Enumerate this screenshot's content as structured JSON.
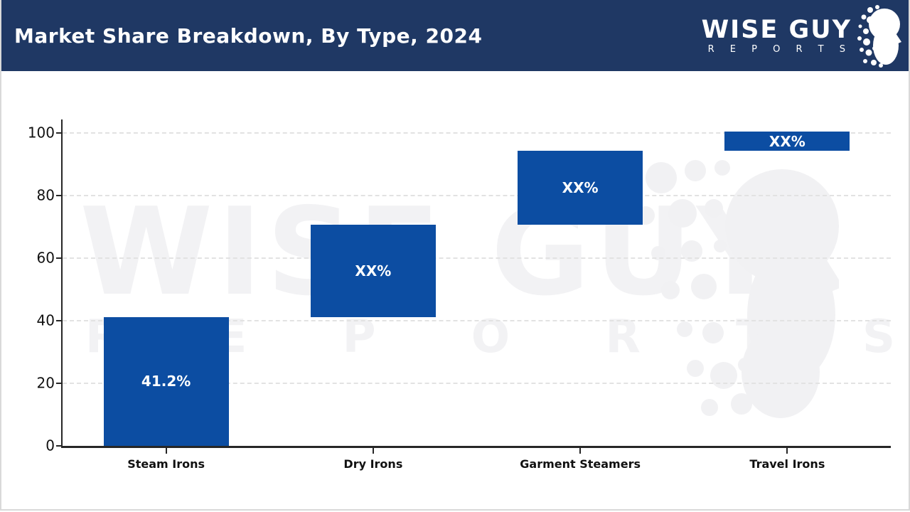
{
  "header": {
    "title": "Market Share Breakdown, By Type, 2024",
    "bg_color": "#1f3864",
    "logo": {
      "line1": "WISE GUY",
      "line2": "R E P O R T S"
    }
  },
  "watermark": {
    "line1": "WISE GUY",
    "line2": "R E P O R T S"
  },
  "chart_data": {
    "type": "waterfall",
    "title": "Market Share Breakdown, By Type, 2024",
    "categories": [
      "Steam Irons",
      "Dry Irons",
      "Garment Steamers",
      "Travel Irons"
    ],
    "segments": [
      {
        "category": "Steam Irons",
        "start": 0,
        "end": 41.2,
        "value": 41.2,
        "label": "41.2%"
      },
      {
        "category": "Dry Irons",
        "start": 41.2,
        "end": 70.6,
        "value": 29.4,
        "label": "XX%"
      },
      {
        "category": "Garment Steamers",
        "start": 70.6,
        "end": 94.3,
        "value": 23.7,
        "label": "XX%"
      },
      {
        "category": "Travel Irons",
        "start": 94.3,
        "end": 100.4,
        "value": 6.1,
        "label": "XX%"
      }
    ],
    "yticks": [
      0,
      20,
      40,
      60,
      80,
      100
    ],
    "ylim": [
      0,
      105
    ],
    "xlabel": "",
    "ylabel": "",
    "legend": null,
    "grid": true,
    "grid_style": "dashed",
    "bar_color": "#0c4da2",
    "value_label_color": "#ffffff"
  }
}
